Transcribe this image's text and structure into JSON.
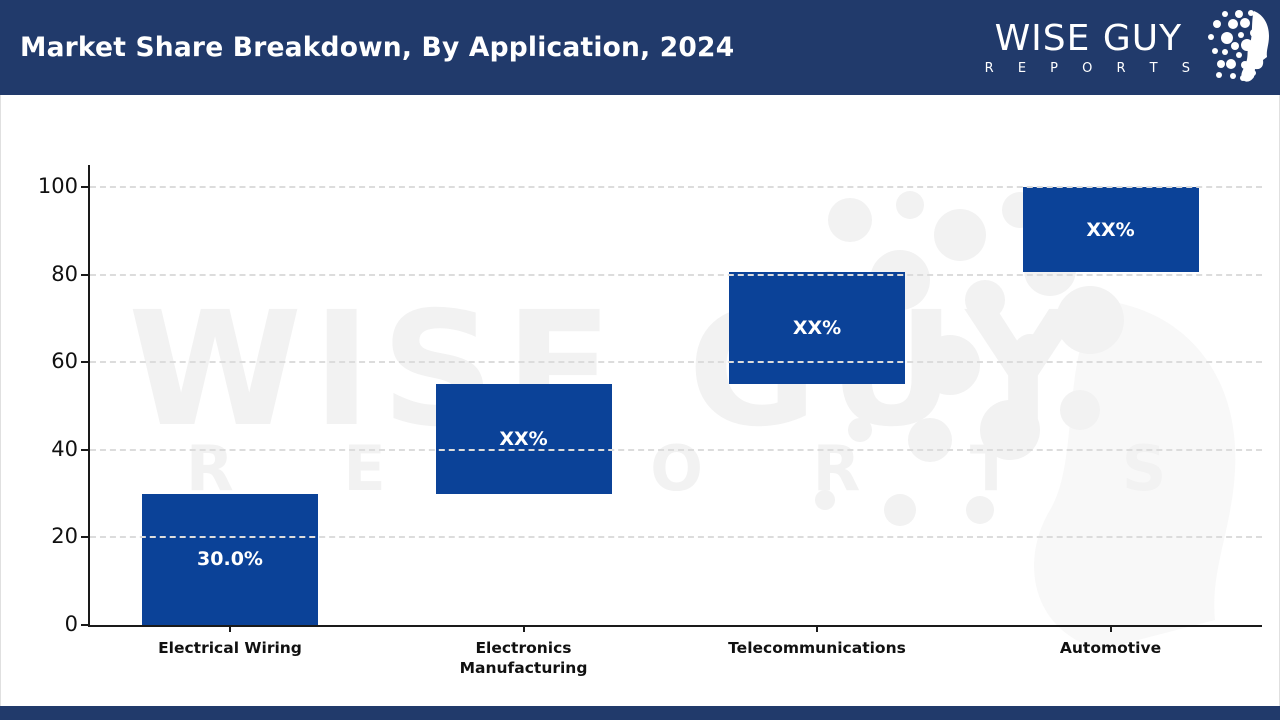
{
  "header": {
    "title": "Market Share Breakdown, By Application, 2024",
    "logo": {
      "wordmark": "WISE GUY",
      "subtext": "R E P O R T S"
    }
  },
  "watermark": {
    "line1": "WISE GUY",
    "line2": "R E P O R T S"
  },
  "chart_data": {
    "type": "bar",
    "subtype": "floating-waterfall",
    "title": "Market Share Breakdown, By Application, 2024",
    "categories": [
      "Electrical Wiring",
      "Electronics Manufacturing",
      "Telecommunications",
      "Automotive"
    ],
    "segments": [
      {
        "category": "Electrical Wiring",
        "start": 0,
        "end": 30,
        "label": "30.0%"
      },
      {
        "category": "Electronics Manufacturing",
        "start": 30,
        "end": 55,
        "label": "XX%"
      },
      {
        "category": "Telecommunications",
        "start": 55,
        "end": 80.5,
        "label": "XX%"
      },
      {
        "category": "Automotive",
        "start": 80.5,
        "end": 100,
        "label": "XX%"
      }
    ],
    "ylim": [
      0,
      100
    ],
    "yticks": [
      0,
      20,
      40,
      60,
      80,
      100
    ],
    "xlabel": "",
    "ylabel": "",
    "grid": "horizontal-dashed",
    "legend": "none",
    "bar_color": "#0b4298",
    "bar_label_color": "#ffffff"
  },
  "colors": {
    "header_bg": "#213a6b",
    "footer_bg": "#213a6b",
    "bar": "#0b4298",
    "watermark": "#f2f2f2",
    "grid": "#dcdcdc",
    "axis": "#1a1a1a"
  }
}
